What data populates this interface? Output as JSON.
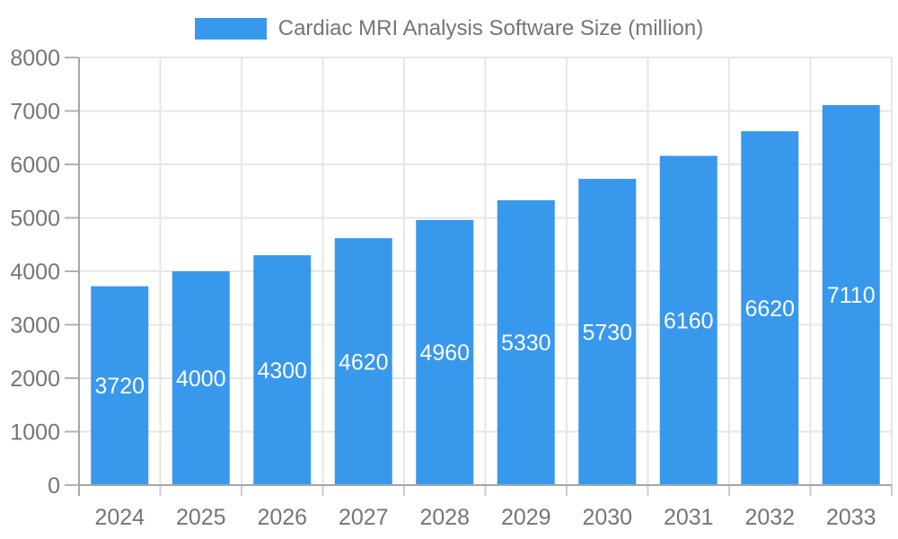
{
  "legend": {
    "series_label": "Cardiac MRI Analysis Software Size (million)"
  },
  "chart_data": {
    "type": "bar",
    "title": "Cardiac MRI Analysis Software Size (million)",
    "categories": [
      "2024",
      "2025",
      "2026",
      "2027",
      "2028",
      "2029",
      "2030",
      "2031",
      "2032",
      "2033"
    ],
    "values": [
      3720,
      4000,
      4300,
      4620,
      4960,
      5330,
      5730,
      6160,
      6620,
      7110
    ],
    "xlabel": "",
    "ylabel": "",
    "ylim": [
      0,
      8000
    ],
    "ytick_step": 1000,
    "grid": true,
    "legend_position": "top-center",
    "bar_labels_inside": true,
    "colors": {
      "bar": "#3898EC",
      "bar_label": "#ffffff",
      "axis_text": "#757575",
      "grid_line": "#e6e6e6",
      "axis_line": "#a6a6a6",
      "y_tick": "#b3b3b3",
      "x_tick": "#cccccc",
      "background": "#ffffff"
    }
  }
}
